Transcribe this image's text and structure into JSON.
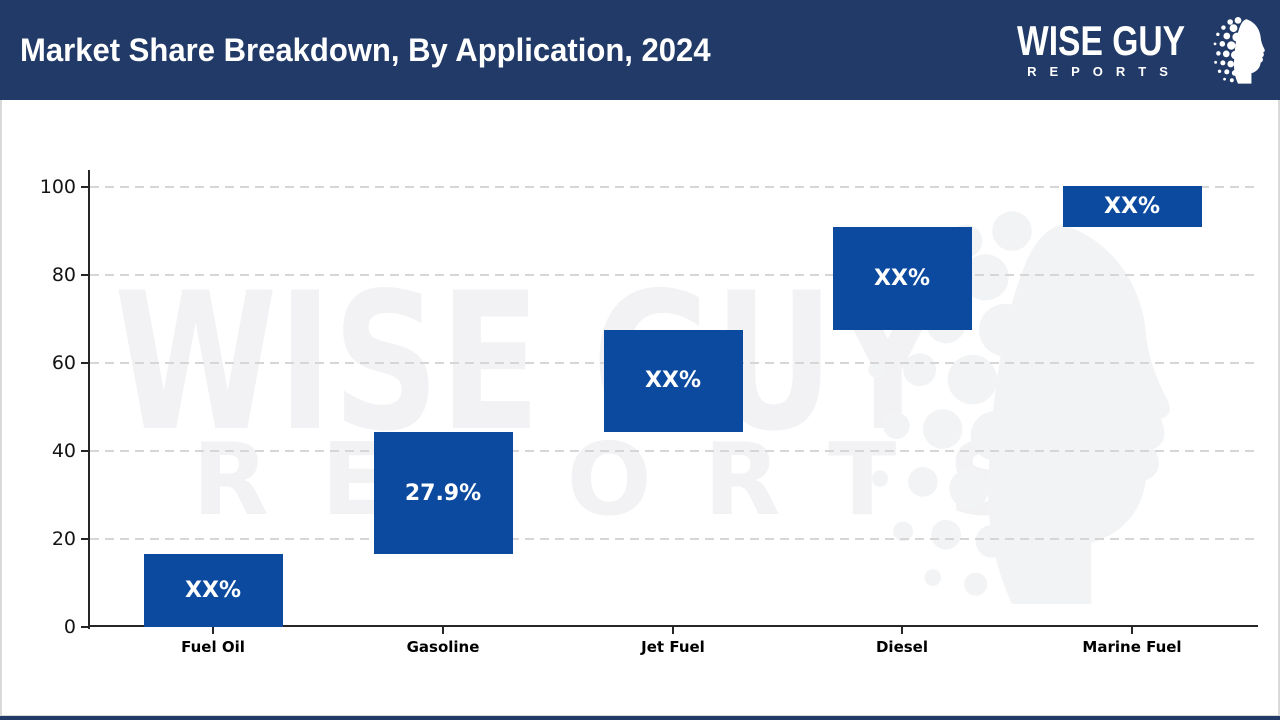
{
  "header": {
    "title": "Market Share Breakdown, By Application, 2024",
    "logo": {
      "wordmark": "WISE GUY",
      "subtext": "REPORTS"
    }
  },
  "watermark": {
    "wordmark": "WISE GUY",
    "subtext": "REPORTS"
  },
  "chart_data": {
    "type": "bar",
    "variant": "floating-waterfall",
    "title": "Market Share Breakdown, By Application, 2024",
    "xlabel": "",
    "ylabel": "",
    "ylim": [
      0,
      104
    ],
    "grid": "horizontal-dashed",
    "legend": "none",
    "y_ticks": [
      0,
      20,
      40,
      60,
      80,
      100
    ],
    "categories": [
      "Fuel Oil",
      "Gasoline",
      "Jet Fuel",
      "Diesel",
      "Marine Fuel"
    ],
    "segments": [
      {
        "category": "Fuel Oil",
        "start": 0,
        "end": 16.5,
        "label": "XX%"
      },
      {
        "category": "Gasoline",
        "start": 16.5,
        "end": 44.4,
        "label": "27.9%"
      },
      {
        "category": "Jet Fuel",
        "start": 44.4,
        "end": 67.6,
        "label": "XX%"
      },
      {
        "category": "Diesel",
        "start": 67.6,
        "end": 90.8,
        "label": "XX%"
      },
      {
        "category": "Marine Fuel",
        "start": 90.8,
        "end": 100.2,
        "label": "XX%"
      }
    ],
    "bar_color": "#0b4a9f",
    "label_color": "#ffffff"
  },
  "colors": {
    "header_bg": "#213a67",
    "footer_bg": "#213a67",
    "bar": "#0b4a9f",
    "axis": "#262626",
    "gridline": "#d6d6d6",
    "watermark": "#f2f2f4",
    "title_text": "#ffffff"
  }
}
